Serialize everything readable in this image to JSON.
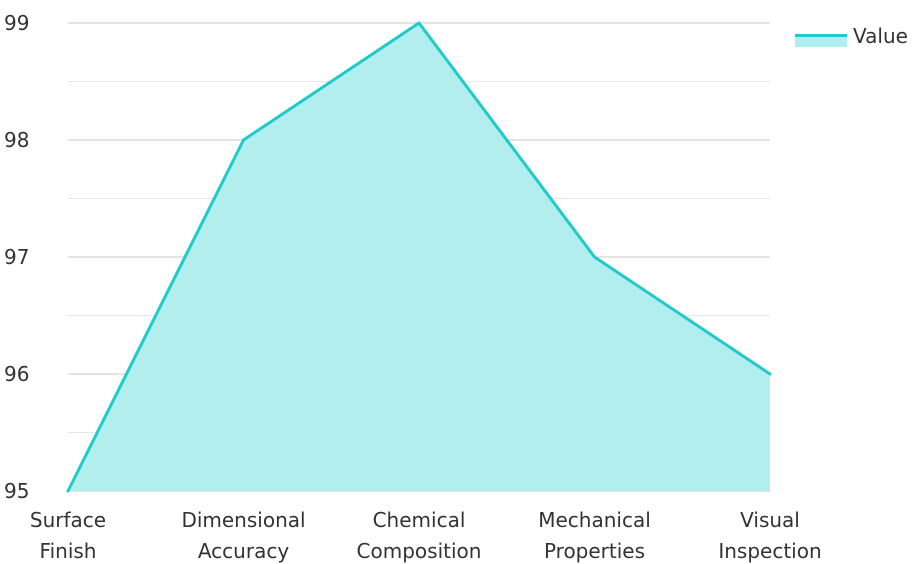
{
  "chart_data": {
    "type": "area",
    "categories": [
      "Surface Finish",
      "Dimensional Accuracy",
      "Chemical Composition",
      "Mechanical Properties",
      "Visual Inspection"
    ],
    "category_lines": [
      [
        "Surface",
        "Finish"
      ],
      [
        "Dimensional",
        "Accuracy"
      ],
      [
        "Chemical",
        "Composition"
      ],
      [
        "Mechanical",
        "Properties"
      ],
      [
        "Visual",
        "Inspection"
      ]
    ],
    "series": [
      {
        "name": "Value",
        "values": [
          95,
          98,
          99,
          97,
          96
        ]
      }
    ],
    "title": "",
    "xlabel": "",
    "ylabel": "",
    "ylim": [
      95,
      99
    ],
    "yticks": [
      95,
      96,
      97,
      98,
      99
    ],
    "grid": true,
    "legend_position": "top-right",
    "colors": {
      "line": "#1ecbcb",
      "fill": "#b3eeee",
      "grid": "#c8c8c8",
      "text": "#333333"
    }
  }
}
